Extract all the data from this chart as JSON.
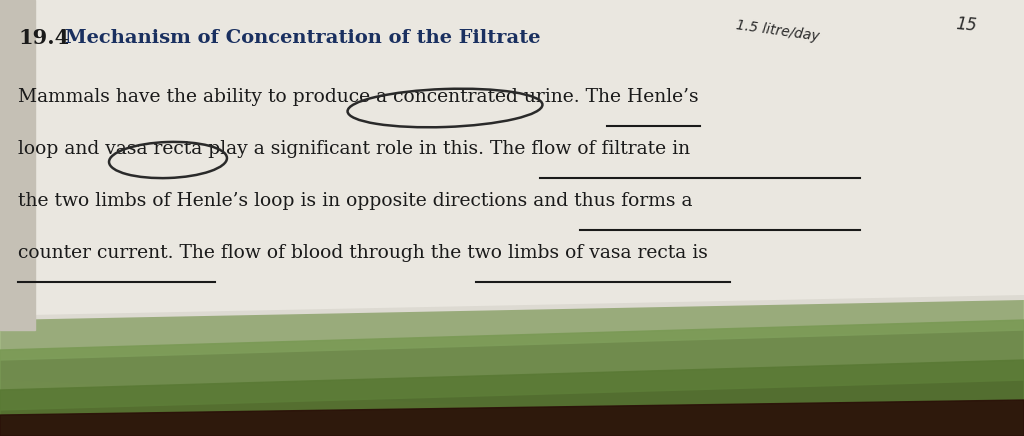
{
  "title_num": "19.4",
  "title_text": "Mechanism of Concentration of the Filtrate",
  "handwritten1": "1.5 litre/day",
  "handwritten2": "15",
  "body_lines": [
    "Mammals have the ability to produce a concentrated urine. The Henle’s",
    "loop and vasa recta play a significant role in this. The flow of filtrate in",
    "the two limbs of Henle’s loop is in opposite directions and thus forms a",
    "counter current. The flow of blood through the two limbs of vasa recta is"
  ],
  "bg_page": "#e8e5df",
  "bg_page2": "#d8d4cc",
  "green_light": "#a8be88",
  "green_mid": "#7a9a55",
  "green_dark": "#5a7a35",
  "brown_dark": "#3a1a10",
  "text_color": "#1a1a1a",
  "title_num_color": "#1a1a1a",
  "title_text_color": "#1a3060"
}
